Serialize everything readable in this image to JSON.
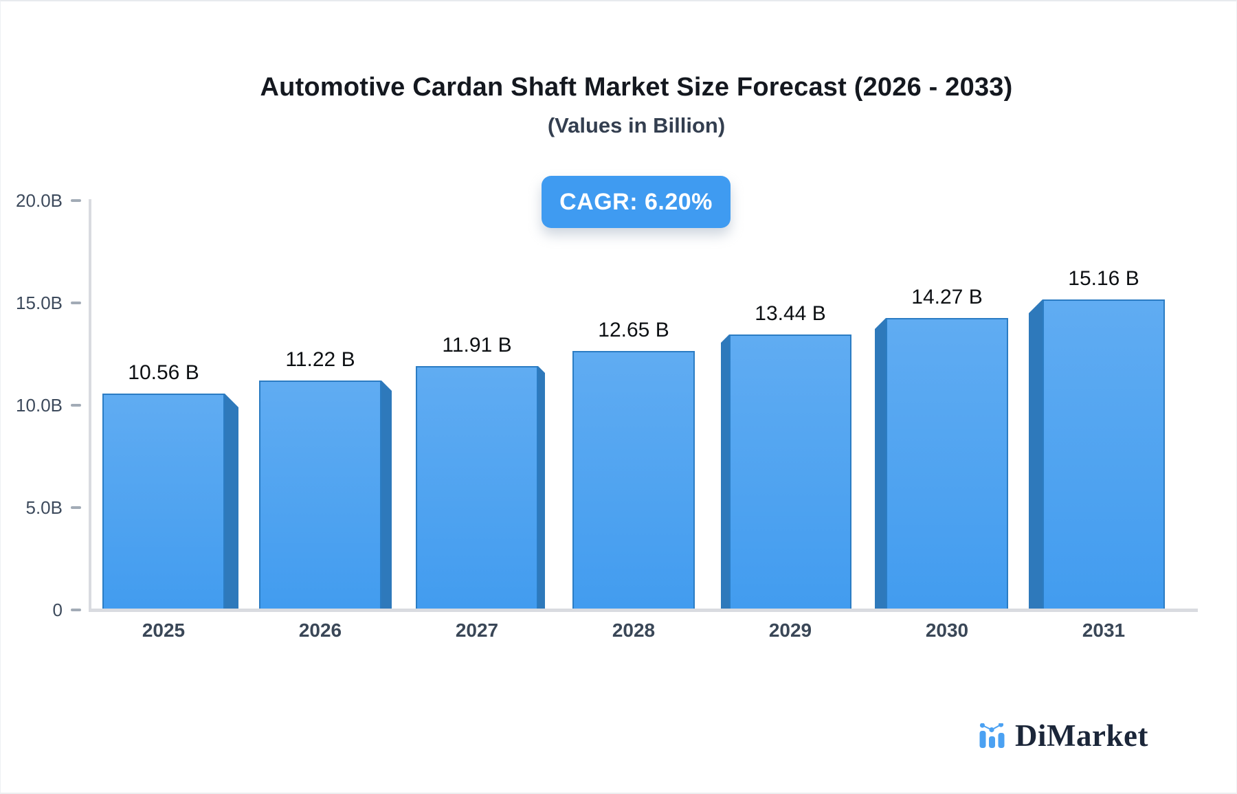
{
  "title": "Automotive Cardan Shaft Market Size Forecast (2026 - 2033)",
  "subtitle": "(Values in Billion)",
  "badge": {
    "label": "CAGR: 6.20%",
    "color": "#3F9BF1"
  },
  "logo": {
    "name": "DiMarket",
    "icon": "bar-chart-logo-icon",
    "color": "#1B2639",
    "icon_color": "#4BA1F2"
  },
  "chart_data": {
    "type": "bar",
    "title": "Automotive Cardan Shaft Market Size Forecast (2026 - 2033)",
    "subtitle": "(Values in Billion)",
    "categories": [
      "2025",
      "2026",
      "2027",
      "2028",
      "2029",
      "2030",
      "2031"
    ],
    "values": [
      10.56,
      11.22,
      11.91,
      12.65,
      13.44,
      14.27,
      15.16
    ],
    "value_labels": [
      "10.56 B",
      "11.22 B",
      "11.91 B",
      "12.65 B",
      "13.44 B",
      "14.27 B",
      "15.16 B"
    ],
    "unit": "Billion",
    "ylim": [
      0,
      20
    ],
    "yticks": [
      {
        "value": 20,
        "label": "20.0B"
      },
      {
        "value": 15,
        "label": "15.0B"
      },
      {
        "value": 10,
        "label": "10.0B"
      },
      {
        "value": 5,
        "label": "5.0B"
      },
      {
        "value": 0,
        "label": "0"
      }
    ],
    "grid": false,
    "legend": null,
    "bar_style_3d": {
      "side_widths": [
        20,
        15,
        10,
        0,
        12,
        16,
        20
      ],
      "side_sides": [
        "right",
        "right",
        "right",
        "none",
        "left",
        "left",
        "left"
      ]
    },
    "colors": {
      "bar_face_top": "#60ACF2",
      "bar_face_bottom": "#429CEF",
      "bar_border": "#2B7CC3",
      "bar_side": "#2E79BB",
      "axis_line": "#D9DBE0",
      "tick_mark": "#A2ABB6",
      "tick_label": "#3D4A5C",
      "category_label": "#3A4757",
      "value_label": "#0D1013"
    }
  }
}
